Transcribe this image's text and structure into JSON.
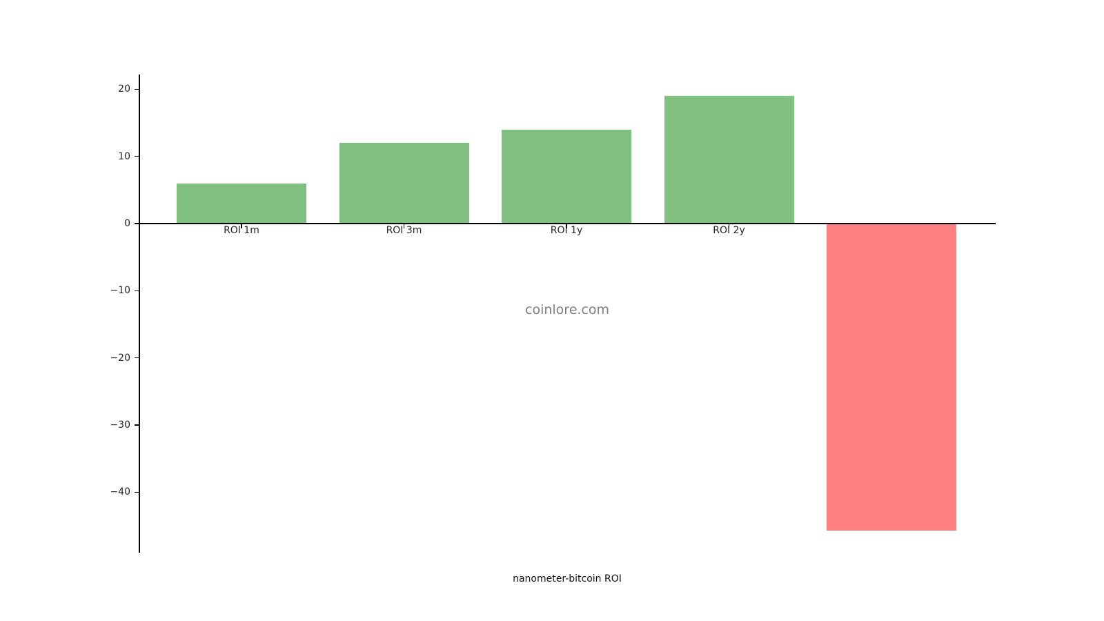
{
  "chart_data": {
    "type": "bar",
    "title": "nanometer-bitcoin ROI",
    "watermark": "coinlore.com",
    "categories": [
      "ROI 1m",
      "ROI 3m",
      "ROI 1y",
      "ROI 2y",
      ""
    ],
    "values": [
      6,
      12,
      14,
      19,
      -45.7
    ],
    "yticks": [
      20,
      10,
      0,
      -10,
      -20,
      -30,
      -40
    ],
    "ylim": [
      -49,
      22.2
    ],
    "xlabel": "",
    "ylabel": "",
    "grid": false,
    "legend": "none",
    "positive_color": "#80c080",
    "negative_color": "#ff8080",
    "axis_color": "#000000",
    "tick_text_color": "#262626",
    "watermark_color": "#7f7f7f",
    "background_color": "#ffffff"
  }
}
